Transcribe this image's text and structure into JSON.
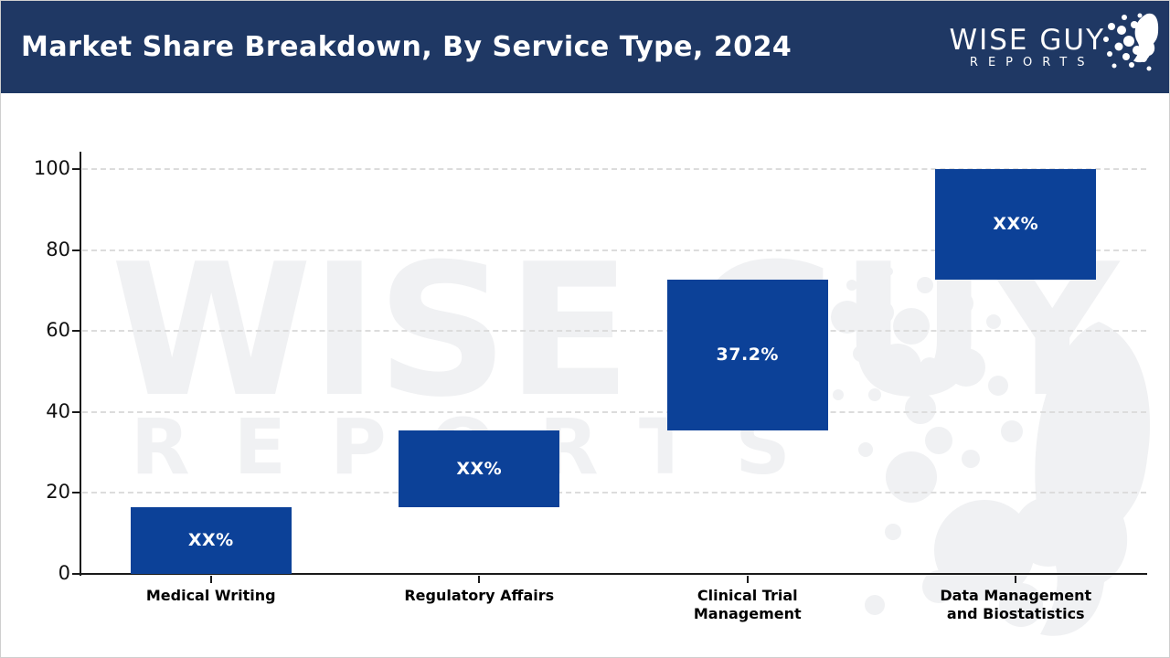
{
  "header": {
    "title": "Market Share Breakdown, By Service Type, 2024",
    "logo": {
      "line1": "WISE GUY",
      "line2": "REPORTS"
    }
  },
  "watermark": {
    "line1": "WISE GUY",
    "line2": "REPORTS"
  },
  "colors": {
    "header_bg": "#1F3864",
    "bar": "#0C4198",
    "grid": "#DCDCDC",
    "axis": "#1A1A1A",
    "watermark": "#F0F1F3",
    "value_text": "#FFFFFF",
    "border": "#CFCFCF"
  },
  "chart_data": {
    "type": "bar",
    "subtype": "waterfall",
    "title": "Market Share Breakdown, By Service Type, 2024",
    "categories": [
      "Medical Writing",
      "Regulatory Affairs",
      "Clinical Trial Management",
      "Data Management and Biostatistics"
    ],
    "categories_lines": [
      [
        "Medical Writing"
      ],
      [
        "Regulatory Affairs"
      ],
      [
        "Clinical Trial",
        "Management"
      ],
      [
        "Data Management",
        "and Biostatistics"
      ]
    ],
    "segments": [
      {
        "category": "Medical Writing",
        "start": 0,
        "end": 16.5,
        "label": "XX%"
      },
      {
        "category": "Regulatory Affairs",
        "start": 16.5,
        "end": 35.5,
        "label": "XX%"
      },
      {
        "category": "Clinical Trial Management",
        "start": 35.5,
        "end": 72.7,
        "label": "37.2%"
      },
      {
        "category": "Data Management and Biostatistics",
        "start": 72.7,
        "end": 100,
        "label": "XX%"
      }
    ],
    "yticks": [
      0,
      20,
      40,
      60,
      80,
      100
    ],
    "ylim": [
      0,
      104
    ],
    "xlabel": "",
    "ylabel": "",
    "grid": "dashed-horizontal",
    "legend": "none",
    "bar_color": "#0C4198",
    "value_label_color": "#FFFFFF"
  }
}
